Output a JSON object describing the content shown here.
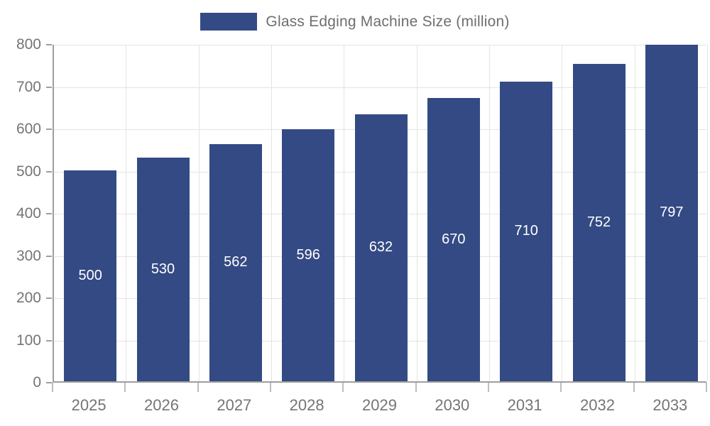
{
  "legend": {
    "label": "Glass Edging Machine Size (million)",
    "swatch_color": "#344a84"
  },
  "chart_data": {
    "type": "bar",
    "title": "Glass Edging Machine Size (million)",
    "categories": [
      "2025",
      "2026",
      "2027",
      "2028",
      "2029",
      "2030",
      "2031",
      "2032",
      "2033"
    ],
    "values": [
      500,
      530,
      562,
      596,
      632,
      670,
      710,
      752,
      797
    ],
    "xlabel": "",
    "ylabel": "",
    "ylim": [
      0,
      800
    ],
    "ytick_step": 100,
    "ytick_labels": [
      "0",
      "100",
      "200",
      "300",
      "400",
      "500",
      "600",
      "700",
      "800"
    ],
    "grid": true,
    "legend_position": "top-center",
    "bar_color": "#344a84",
    "value_label_style": "inside-center-white"
  },
  "colors": {
    "bar": "#344a84",
    "axis_line": "#9e9e9e",
    "gridline": "#e4e4e4",
    "axis_text": "#757575",
    "legend_text": "#6e6e6e",
    "value_text": "#ffffff",
    "background": "#ffffff"
  }
}
